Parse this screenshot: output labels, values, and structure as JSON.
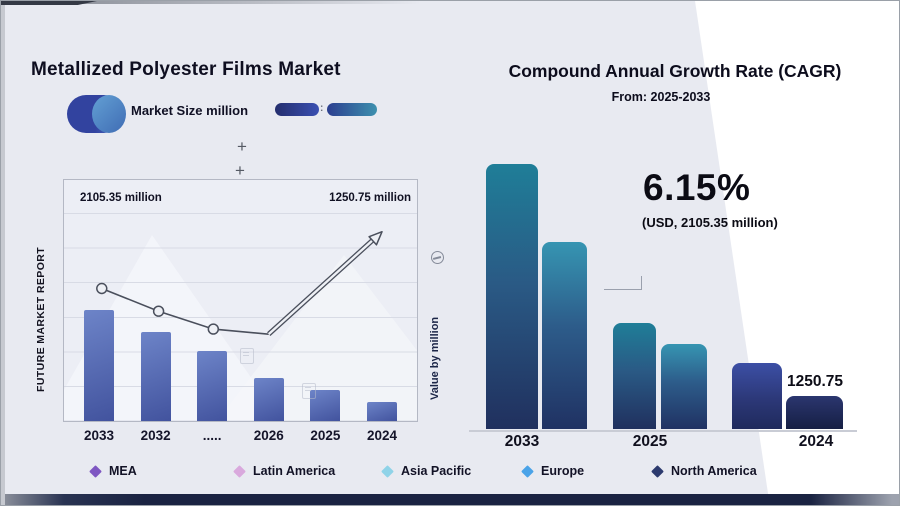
{
  "left_section": {
    "title": "Metallized Polyester Films  Market",
    "market_size_label": "Market Size million",
    "pill_separator": ":",
    "plus_marks": [
      "+",
      "+"
    ]
  },
  "right_section": {
    "title": "Compound Annual Growth Rate (CAGR)",
    "period_label": "From: 2025-2033",
    "cagr_value": "6.15%",
    "cagr_detail": "(USD, 2105.35 million)"
  },
  "chart_data": [
    {
      "type": "bar",
      "subtype": "column-series-with-trend-arrow",
      "title": "",
      "categories": [
        "2033",
        "2032",
        ".....",
        "2026",
        "2025",
        "2024"
      ],
      "values_pct": [
        46,
        37,
        29,
        18,
        13,
        8
      ],
      "unit": "million",
      "start_annotation": "2105.35 million",
      "end_annotation": "1250.75 million",
      "ylabel_left": "FUTURE MARKET REPORT",
      "ylabel_right": "Value by million",
      "grid": true,
      "trend_points_pct": [
        [
          10.7,
          44.9
        ],
        [
          26.8,
          54.3
        ],
        [
          42.3,
          61.7
        ],
        [
          58.0,
          63.8
        ],
        [
          90.1,
          21.4
        ]
      ],
      "trend_markers": 3
    },
    {
      "type": "bar",
      "subtype": "paired-columns",
      "title": "6.15%",
      "subtitle": "(USD, 2105.35 million)",
      "categories": [
        "2033",
        "2025",
        "2024"
      ],
      "series": [
        {
          "name": "series-a",
          "values_pct": [
            100,
            40,
            25
          ]
        },
        {
          "name": "series-b",
          "values_pct": [
            70.5,
            32,
            12.5
          ]
        }
      ],
      "value_annotation": "1250.75",
      "annotation_category": "2024",
      "ylabel": "",
      "grid": false
    }
  ],
  "legend": {
    "position": "bottom",
    "items": [
      {
        "label": "MEA",
        "color": "#7e57c2"
      },
      {
        "label": "Latin America",
        "color": "#d9a9dd"
      },
      {
        "label": "Asia Pacific",
        "color": "#8fd3e8"
      },
      {
        "label": "Europe",
        "color": "#4aa3e8"
      },
      {
        "label": "North America",
        "color": "#2c3a6e"
      }
    ]
  },
  "colors": {
    "background": "#e8eaf1",
    "left_bar_top": "#6d84c8",
    "left_bar_bottom": "#42539e",
    "teal_bar_top": "#1f7e98",
    "navy_bar_bottom": "#1f2a5c",
    "trend_line": "#4a4f5c",
    "bottom_bar": "#1a2342"
  }
}
